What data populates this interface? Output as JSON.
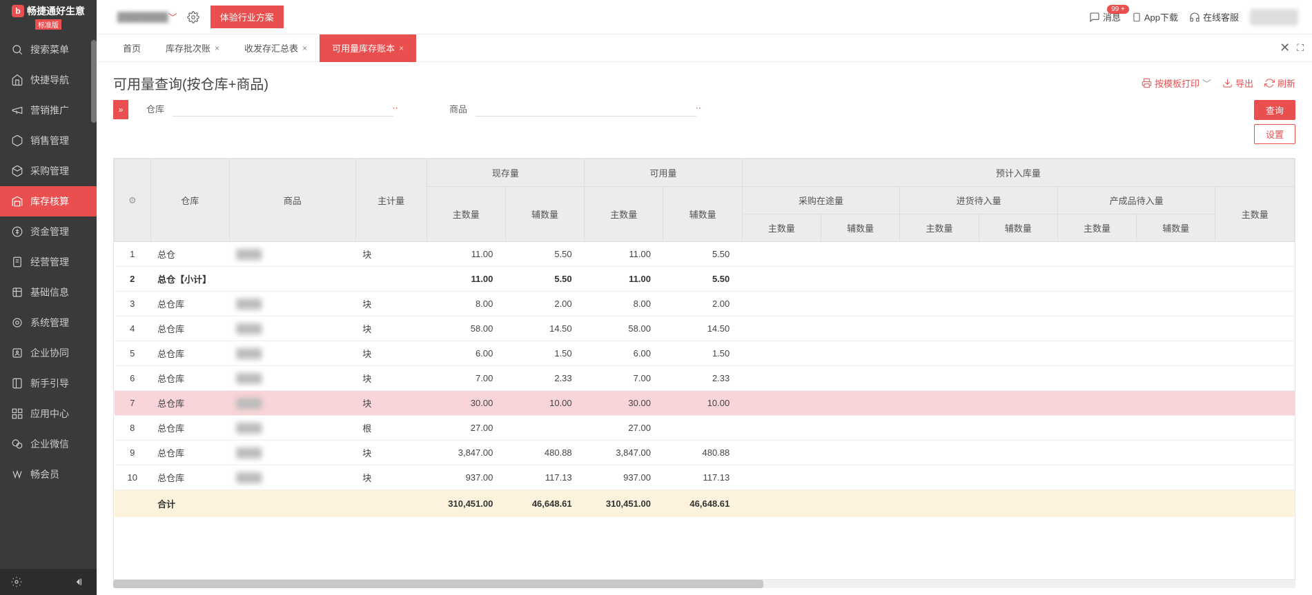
{
  "brand": {
    "name": "畅捷通好生意",
    "edition": "标准版",
    "logo_letter": "b"
  },
  "topbar": {
    "tenant": "████████",
    "gear": "settings-icon",
    "industry_btn": "体验行业方案",
    "msg": "消息",
    "msg_badge": "99 +",
    "app": "App下载",
    "service": "在线客服"
  },
  "sidebar": {
    "items": [
      {
        "icon": "search",
        "label": "搜索菜单"
      },
      {
        "icon": "home",
        "label": "快捷导航"
      },
      {
        "icon": "megaphone",
        "label": "营销推广"
      },
      {
        "icon": "box-out",
        "label": "销售管理"
      },
      {
        "icon": "box-in",
        "label": "采购管理"
      },
      {
        "icon": "warehouse",
        "label": "库存核算",
        "active": true
      },
      {
        "icon": "money",
        "label": "资金管理"
      },
      {
        "icon": "clipboard",
        "label": "经营管理"
      },
      {
        "icon": "database",
        "label": "基础信息"
      },
      {
        "icon": "gear-ring",
        "label": "系统管理"
      },
      {
        "icon": "team",
        "label": "企业协同"
      },
      {
        "icon": "book",
        "label": "新手引导"
      },
      {
        "icon": "apps",
        "label": "应用中心"
      },
      {
        "icon": "wechat",
        "label": "企业微信"
      },
      {
        "icon": "vip",
        "label": "畅会员"
      }
    ]
  },
  "tabs": [
    {
      "label": "首页",
      "closable": false
    },
    {
      "label": "库存批次账",
      "closable": true
    },
    {
      "label": "收发存汇总表",
      "closable": true
    },
    {
      "label": "可用量库存账本",
      "closable": true,
      "active": true
    }
  ],
  "page": {
    "title": "可用量查询(按仓库+商品)",
    "actions": {
      "print": "按模板打印",
      "export": "导出",
      "refresh": "刷新"
    }
  },
  "filters": {
    "warehouse_label": "仓库",
    "goods_label": "商品",
    "query_btn": "查询",
    "settings_btn": "设置"
  },
  "table": {
    "headers": {
      "warehouse": "仓库",
      "goods": "商品",
      "main_unit": "主计量",
      "stock": "现存量",
      "avail": "可用量",
      "expected": "预计入库量",
      "main_qty": "主数量",
      "aux_qty": "辅数量",
      "purchase_transit": "采购在途量",
      "receipt_pending": "进货待入量",
      "finished_pending": "产成品待入量"
    },
    "rows": [
      {
        "idx": "1",
        "wh": "总仓",
        "goods": "████",
        "unit": "块",
        "stock_m": "11.00",
        "stock_a": "5.50",
        "avail_m": "11.00",
        "avail_a": "5.50"
      },
      {
        "idx": "2",
        "wh": "总仓【小计】",
        "goods": "",
        "unit": "",
        "stock_m": "11.00",
        "stock_a": "5.50",
        "avail_m": "11.00",
        "avail_a": "5.50",
        "subtotal": true
      },
      {
        "idx": "3",
        "wh": "总仓库",
        "goods": "████",
        "unit": "块",
        "stock_m": "8.00",
        "stock_a": "2.00",
        "avail_m": "8.00",
        "avail_a": "2.00"
      },
      {
        "idx": "4",
        "wh": "总仓库",
        "goods": "████",
        "unit": "块",
        "stock_m": "58.00",
        "stock_a": "14.50",
        "avail_m": "58.00",
        "avail_a": "14.50"
      },
      {
        "idx": "5",
        "wh": "总仓库",
        "goods": "████",
        "unit": "块",
        "stock_m": "6.00",
        "stock_a": "1.50",
        "avail_m": "6.00",
        "avail_a": "1.50"
      },
      {
        "idx": "6",
        "wh": "总仓库",
        "goods": "████",
        "unit": "块",
        "stock_m": "7.00",
        "stock_a": "2.33",
        "avail_m": "7.00",
        "avail_a": "2.33"
      },
      {
        "idx": "7",
        "wh": "总仓库",
        "goods": "████",
        "unit": "块",
        "stock_m": "30.00",
        "stock_a": "10.00",
        "avail_m": "30.00",
        "avail_a": "10.00",
        "highlighted": true
      },
      {
        "idx": "8",
        "wh": "总仓库",
        "goods": "████",
        "unit": "根",
        "stock_m": "27.00",
        "stock_a": "",
        "avail_m": "27.00",
        "avail_a": ""
      },
      {
        "idx": "9",
        "wh": "总仓库",
        "goods": "████",
        "unit": "块",
        "stock_m": "3,847.00",
        "stock_a": "480.88",
        "avail_m": "3,847.00",
        "avail_a": "480.88"
      },
      {
        "idx": "10",
        "wh": "总仓库",
        "goods": "████",
        "unit": "块",
        "stock_m": "937.00",
        "stock_a": "117.13",
        "avail_m": "937.00",
        "avail_a": "117.13"
      }
    ],
    "total": {
      "label": "合计",
      "stock_m": "310,451.00",
      "stock_a": "46,648.61",
      "avail_m": "310,451.00",
      "avail_a": "46,648.61"
    }
  },
  "colors": {
    "accent": "#e94f4f",
    "sidebar_bg": "#3a3a3a",
    "header_bg": "#ececec",
    "total_bg": "#fdf3dd",
    "highlight_bg": "#f9d4d8"
  }
}
